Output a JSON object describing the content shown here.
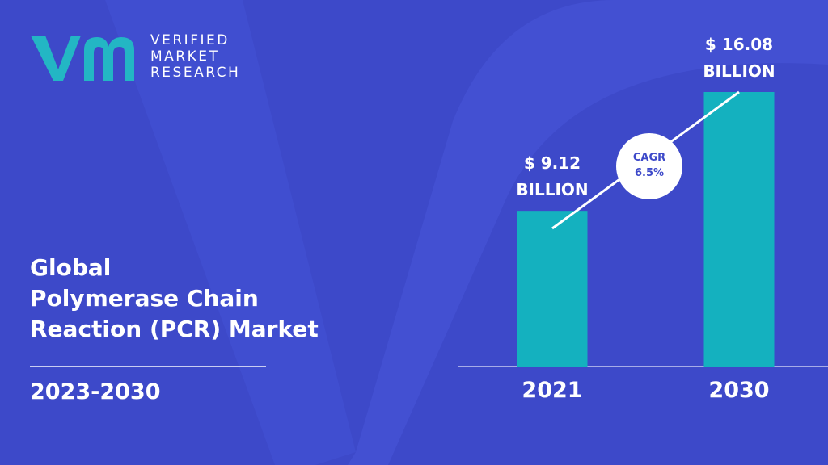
{
  "brand": {
    "line1": "VERIFIED",
    "line2": "MARKET",
    "line3": "RESEARCH"
  },
  "title_lines": [
    "Global",
    "Polymerase Chain",
    "Reaction (PCR) Market"
  ],
  "period": "2023-2030",
  "cagr": {
    "label": "CAGR",
    "value": "6.5%"
  },
  "colors": {
    "background": "#3d49c9",
    "bar": "#14b1bf",
    "logo_mark": "#23b6c4"
  },
  "chart_data": {
    "type": "bar",
    "categories": [
      "2021",
      "2030"
    ],
    "values": [
      9.12,
      16.08
    ],
    "value_labels": [
      [
        "$ 9.12",
        "BILLION"
      ],
      [
        "$ 16.08",
        "BILLION"
      ]
    ],
    "title": "",
    "xlabel": "",
    "ylabel": "",
    "ylim": [
      0,
      16.08
    ],
    "grid": false,
    "legend": "none"
  }
}
